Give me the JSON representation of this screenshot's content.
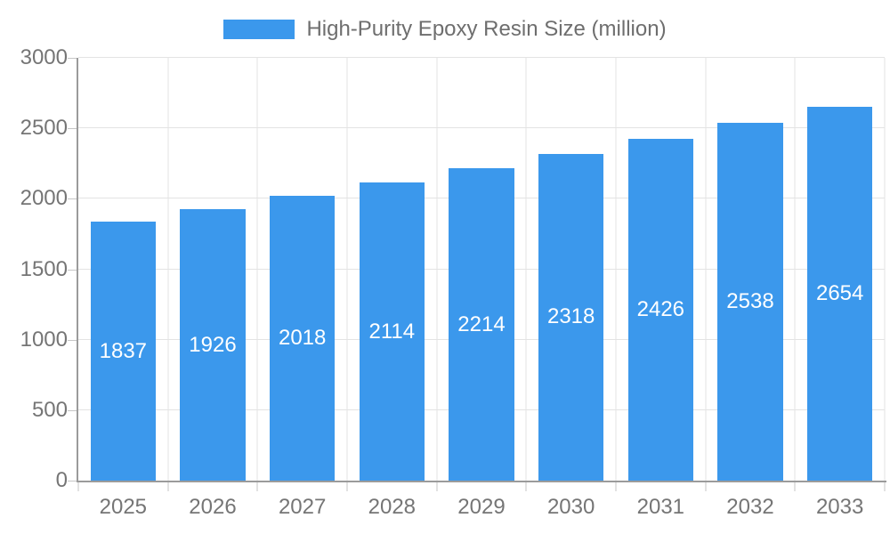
{
  "legend": {
    "label": "High-Purity Epoxy Resin Size (million)"
  },
  "colors": {
    "bar": "#3B98EC",
    "axis_line": "#9B9B9B",
    "grid_line": "#E3E3E3",
    "tick_mark": "#C6C6C6",
    "axis_text": "#757575",
    "legend_text": "#6E6E6E",
    "value_text": "#FFFFFF",
    "background": "#FFFFFF"
  },
  "chart_data": {
    "type": "bar",
    "title": "High-Purity Epoxy Resin Size (million)",
    "series_name": "High-Purity Epoxy Resin Size (million)",
    "categories": [
      "2025",
      "2026",
      "2027",
      "2028",
      "2029",
      "2030",
      "2031",
      "2032",
      "2033"
    ],
    "values": [
      1837,
      1926,
      2018,
      2114,
      2214,
      2318,
      2426,
      2538,
      2654
    ],
    "xlabel": "",
    "ylabel": "",
    "ylim": [
      0,
      3000
    ],
    "yticks": [
      0,
      500,
      1000,
      1500,
      2000,
      2500,
      3000
    ],
    "grid": true,
    "legend_position": "top",
    "value_labels_position": "inside-center",
    "bar_width_fraction": 0.73
  }
}
